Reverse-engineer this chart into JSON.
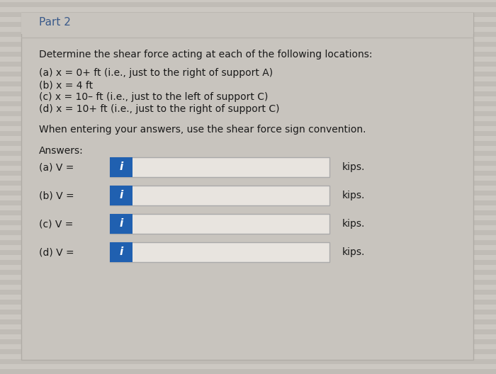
{
  "title": "Part 2",
  "background_color": "#c8c4be",
  "panel_color": "#c8c4be",
  "title_color": "#3a5a8a",
  "title_fontsize": 11,
  "body_fontsize": 10,
  "intro_text": "Determine the shear force acting at each of the following locations:",
  "items": [
    "(a) x = 0+ ft (i.e., just to the right of support A)",
    "(b) x = 4 ft",
    "(c) x = 10– ft (i.e., just to the left of support C)",
    "(d) x = 10+ ft (i.e., just to the right of support C)"
  ],
  "convention_text": "When entering your answers, use the shear force sign convention.",
  "answers_label": "Answers:",
  "answer_rows": [
    "(a) V =",
    "(b) V =",
    "(c) V =",
    "(d) V ="
  ],
  "kips_label": "kips.",
  "input_box_color": "#e8e4df",
  "input_box_border": "#aaaaaa",
  "icon_bg_color": "#2060b0",
  "icon_text_color": "#ffffff",
  "icon_label": "i",
  "stripe_color": "#c0bcb6",
  "stripe_color2": "#ccc8c2",
  "panel_border_color": "#b0aca6",
  "divider_color": "#b8b4ae"
}
